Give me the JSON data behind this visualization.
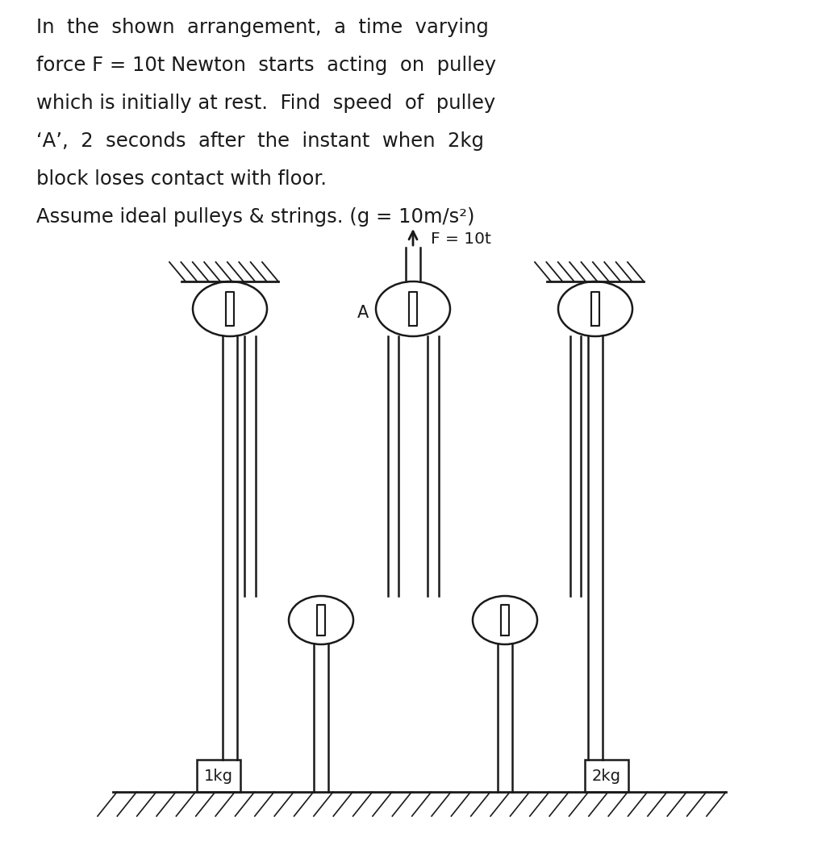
{
  "background_color": "#ffffff",
  "text_color": "#1a1a1a",
  "line_color": "#1a1a1a",
  "force_label": "F = 10t",
  "label_A": "A",
  "label_1kg": "1kg",
  "label_2kg": "2kg",
  "fig_width": 10.24,
  "fig_height": 10.54,
  "dpi": 100,
  "text_lines": [
    "In  the  shown  arrangement,  a  time  varying",
    "force F = 10t Newton starts  acting  on  pulley",
    "which is initially at rest.  Find  speed  of  pulley",
    "‘A’, 2 seconds after  the  instant  when  2kg",
    "block loses contact with floor."
  ],
  "subtitle": "Assume ideal pulleys & strings. (g = 10m/s²)"
}
